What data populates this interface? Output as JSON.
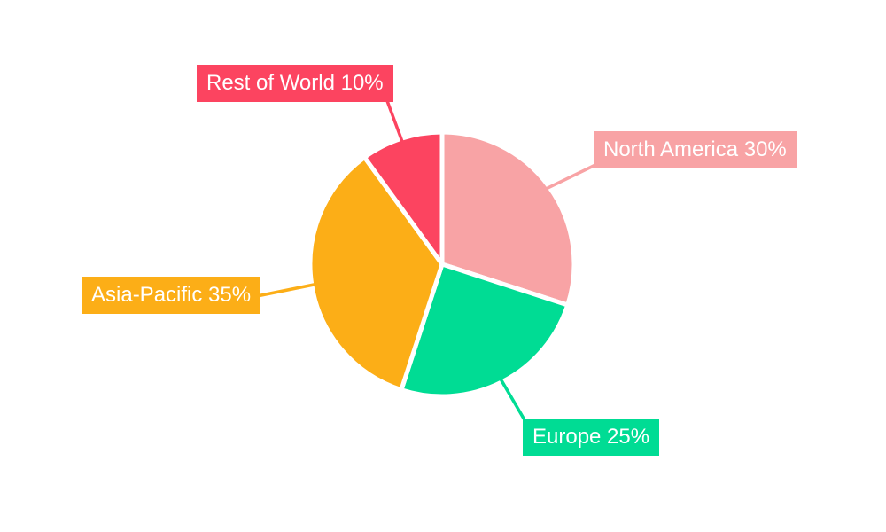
{
  "page": {
    "background": "#FFFFFF"
  },
  "chart_data": {
    "type": "pie",
    "title": "",
    "labels": [
      "North America",
      "Europe",
      "Asia-Pacific",
      "Rest of World"
    ],
    "values": [
      30,
      25,
      35,
      10
    ],
    "unit": "%",
    "colors": [
      "#F8A3A5",
      "#00DC94",
      "#FCAE17",
      "#FC4460"
    ],
    "callouts": [
      "North America 30%",
      "Europe 25%",
      "Asia-Pacific 35%",
      "Rest of World 10%"
    ],
    "start_angle_deg": -90,
    "direction": "clockwise",
    "slice_border_color": "#FFFFFF",
    "label_text_color": "#FFFFFF",
    "legend": "none",
    "layout_hint": "callout labels with leader lines, no axes, white background"
  }
}
